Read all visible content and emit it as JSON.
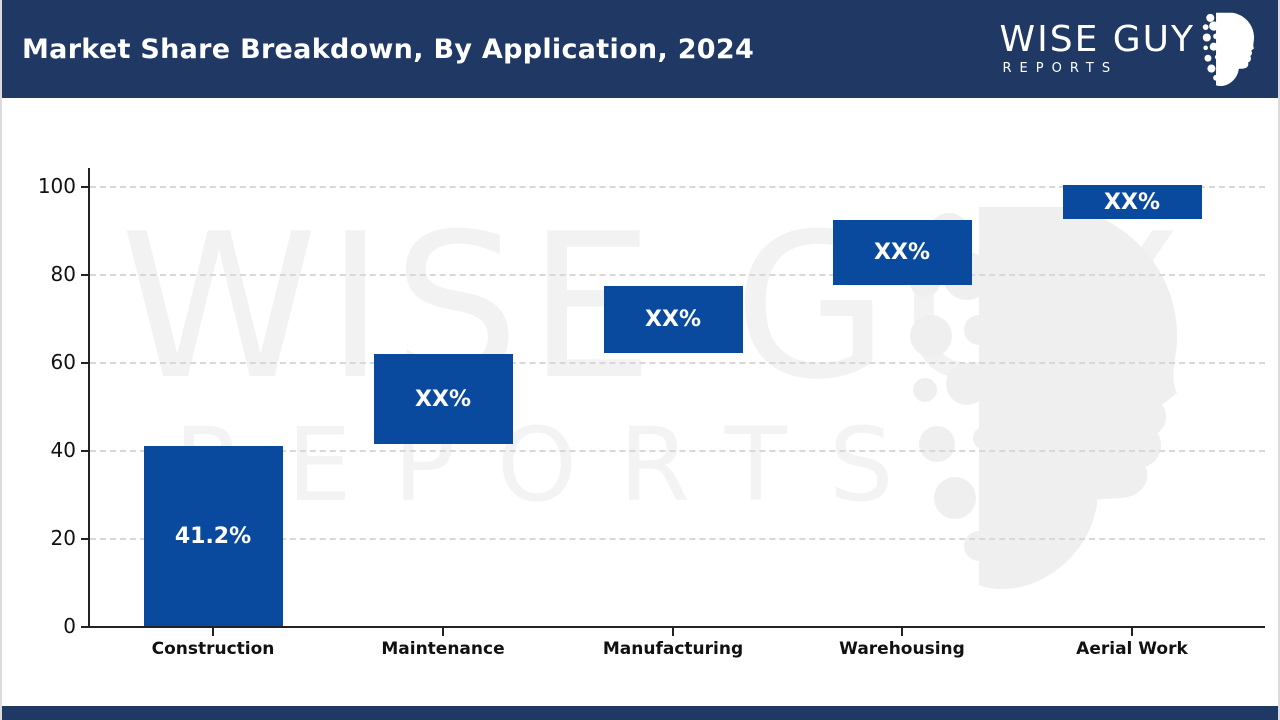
{
  "header": {
    "title": "Market Share Breakdown, By Application, 2024",
    "bg_color": "#1f3864",
    "logo": {
      "line1": "WISE GUY",
      "line2": "REPORTS"
    }
  },
  "watermark": {
    "line1": "WISE GUY",
    "line2": "REPORTS"
  },
  "chart_data": {
    "type": "waterfall",
    "title": "Market Share Breakdown, By Application, 2024",
    "categories": [
      "Construction",
      "Maintenance",
      "Manufacturing",
      "Warehousing",
      "Aerial Work"
    ],
    "segments": [
      {
        "category": "Construction",
        "start": 0,
        "end": 41.2,
        "label": "41.2%"
      },
      {
        "category": "Maintenance",
        "start": 41.5,
        "end": 62.0,
        "label": "XX%"
      },
      {
        "category": "Manufacturing",
        "start": 62.2,
        "end": 77.5,
        "label": "XX%"
      },
      {
        "category": "Warehousing",
        "start": 77.7,
        "end": 92.6,
        "label": "XX%"
      },
      {
        "category": "Aerial Work",
        "start": 92.7,
        "end": 100.4,
        "label": "XX%"
      }
    ],
    "y_ticks": [
      0,
      20,
      40,
      60,
      80,
      100
    ],
    "ylim": [
      0,
      104
    ],
    "xlabel": "",
    "ylabel": "",
    "bar_color": "#0a4a9e",
    "grid": "horizontal-dashed",
    "legend": "none"
  },
  "footer": {
    "bg_color": "#1f3864"
  }
}
